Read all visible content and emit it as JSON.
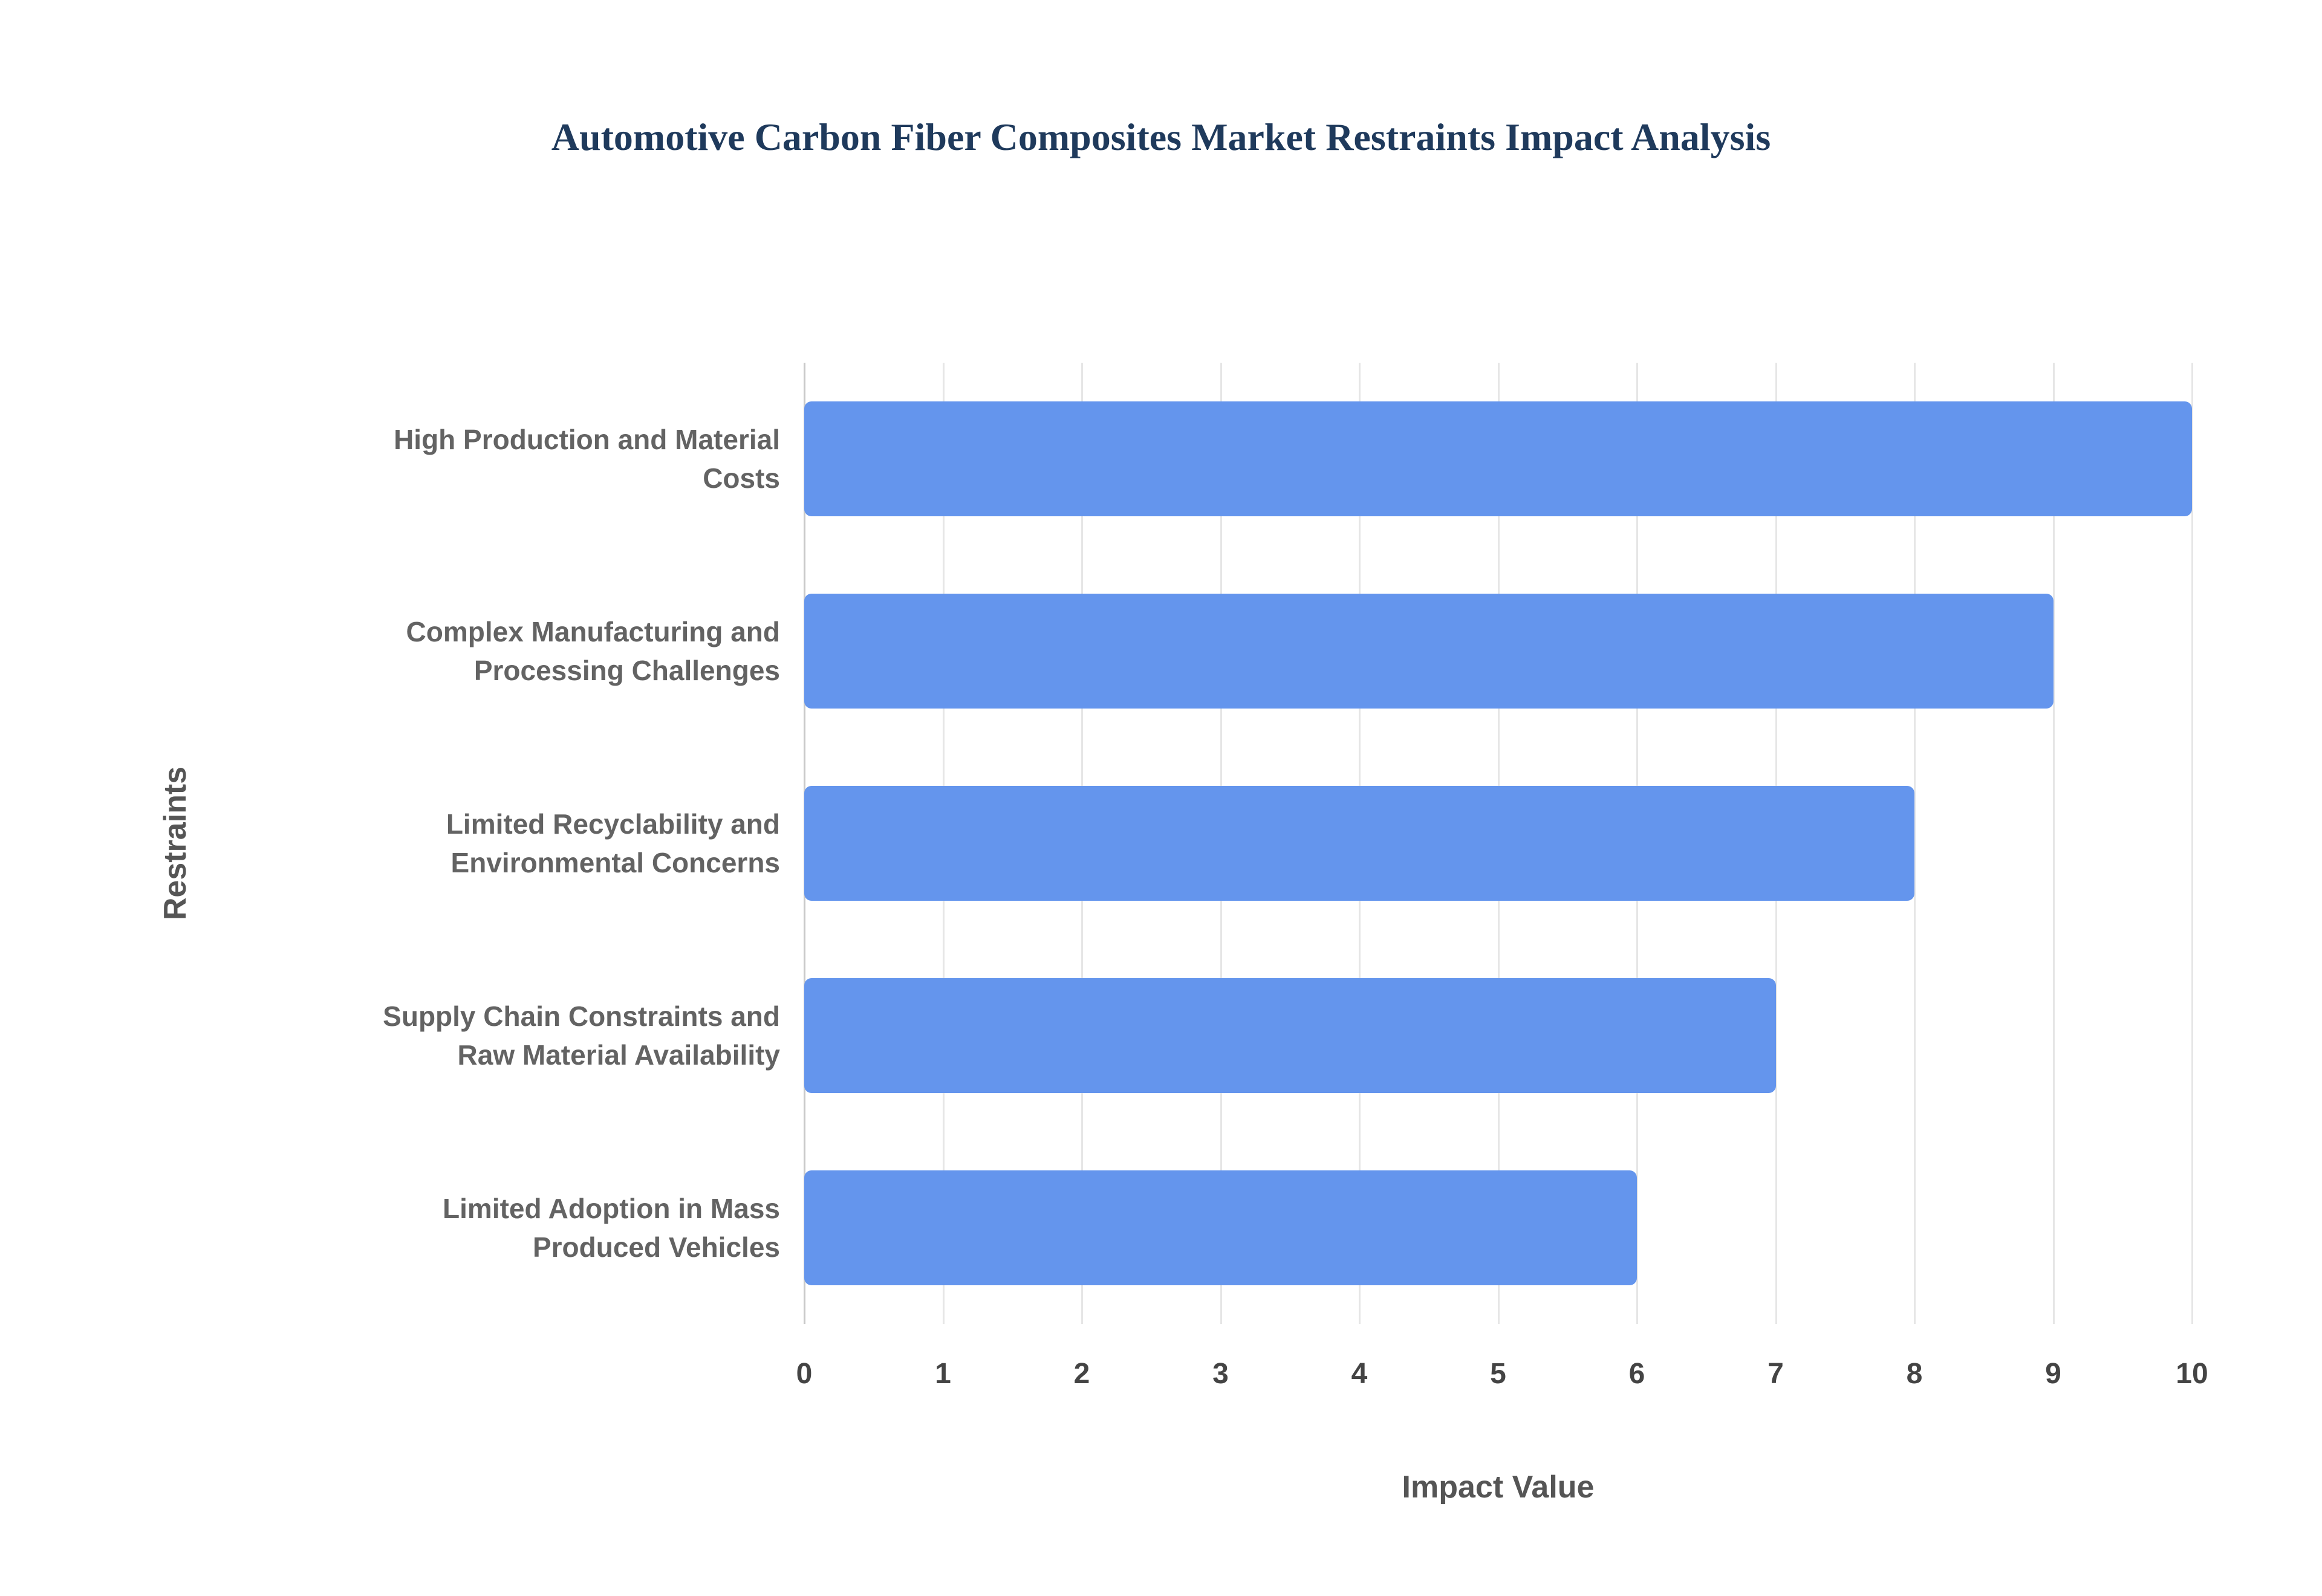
{
  "chart_data": {
    "type": "bar",
    "orientation": "horizontal",
    "title": "Automotive Carbon Fiber Composites Market Restraints Impact Analysis",
    "categories": [
      "High Production and Material Costs",
      "Complex Manufacturing and Processing Challenges",
      "Limited Recyclability and Environmental Concerns",
      "Supply Chain Constraints and Raw Material Availability",
      "Limited Adoption in Mass Produced Vehicles"
    ],
    "values": [
      10,
      9,
      8,
      7,
      6
    ],
    "xlabel": "Impact Value",
    "ylabel": "Restraints",
    "xlim": [
      0,
      10
    ],
    "xticks": [
      0,
      1,
      2,
      3,
      4,
      5,
      6,
      7,
      8,
      9,
      10
    ],
    "grid": "vertical",
    "legend": "none",
    "bar_color": "#6495ED"
  },
  "colors": {
    "background": "#ffffff",
    "title": "#1f3a5c",
    "category_label": "#636363",
    "tick_label": "#444444",
    "axis_title": "#555555",
    "gridline": "#e6e6e6",
    "zero_line": "#c9c9c9",
    "bar": "#6495ED"
  }
}
